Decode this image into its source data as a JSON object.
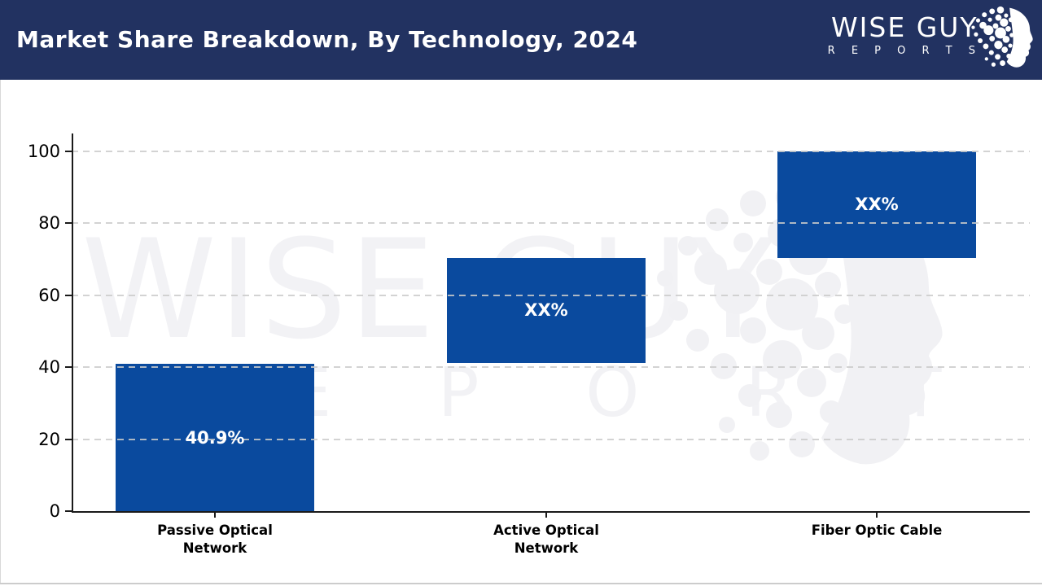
{
  "header": {
    "title": "Market Share Breakdown, By Technology, 2024",
    "logo": {
      "wordmark": "WISE GUY",
      "subtitle": "R E P O R T S"
    }
  },
  "watermark": {
    "line1": "WISE GUY",
    "line2": "R E P O R T S"
  },
  "colors": {
    "header_bg": "#223261",
    "bar": "#0a4a9e",
    "bar_label": "#ffffff",
    "grid": "#cbcbcb",
    "axis": "#1a1a1a",
    "tick_text": "#000000",
    "watermark": "#f2f2f5"
  },
  "chart_data": {
    "type": "bar",
    "subtype": "floating-segment-bars (waterfall style)",
    "title": "Market Share Breakdown, By Technology, 2024",
    "categories": [
      "Passive Optical\nNetwork",
      "Active Optical\nNetwork",
      "Fiber Optic Cable"
    ],
    "segments": [
      {
        "category": "Passive Optical Network",
        "start": 0,
        "end": 40.9,
        "label": "40.9%"
      },
      {
        "category": "Active Optical Network",
        "start": 41.2,
        "end": 70.4,
        "label": "XX%"
      },
      {
        "category": "Fiber Optic Cable",
        "start": 70.4,
        "end": 100,
        "label": "XX%"
      }
    ],
    "xlabel": "",
    "ylabel": "",
    "yticks": [
      0,
      20,
      40,
      60,
      80,
      100
    ],
    "ylim": [
      0,
      104.8
    ],
    "grid": "horizontal dashed, drawn above bars",
    "legend": "none"
  }
}
